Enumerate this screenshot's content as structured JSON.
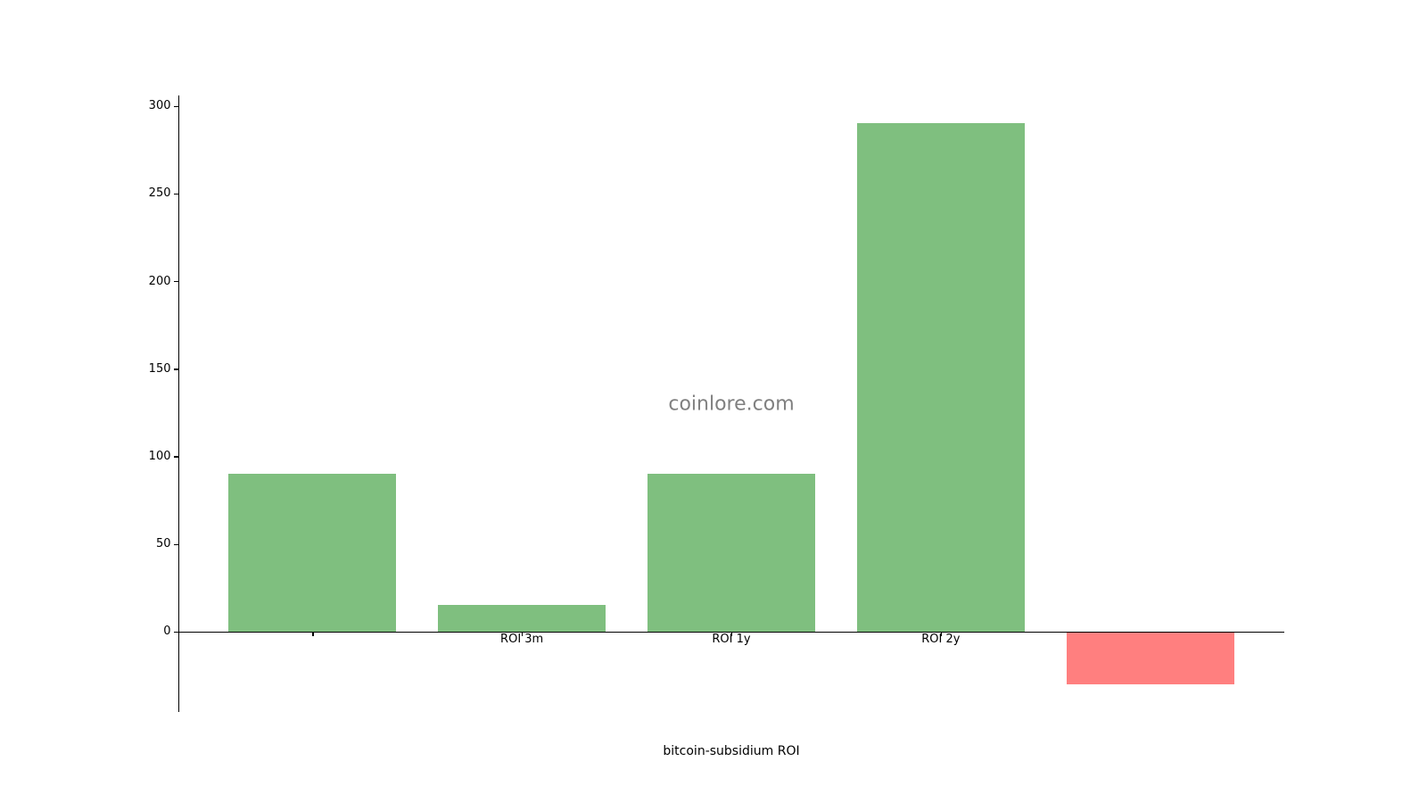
{
  "chart_data": {
    "type": "bar",
    "categories": [
      "",
      "ROI 3m",
      "ROI 1y",
      "ROI 2y",
      ""
    ],
    "values": [
      90,
      15,
      90,
      290,
      -30
    ],
    "bar_colors": [
      "#7fbf7f",
      "#7fbf7f",
      "#7fbf7f",
      "#7fbf7f",
      "#ff7f7f"
    ],
    "positive_color": "#7fbf7f",
    "negative_color": "#ff7f7f",
    "title": "",
    "xlabel": "bitcoin-subsidium ROI",
    "ylabel": "",
    "yticks": [
      0,
      50,
      100,
      150,
      200,
      250,
      300
    ],
    "ylim": [
      -46,
      306
    ],
    "xlim": [
      -0.64,
      4.64
    ],
    "bar_width": 0.8,
    "grid": false,
    "legend": false,
    "watermark": "coinlore.com",
    "axis_color": "#000000",
    "text_color": "#000000",
    "watermark_color": "#808080",
    "background": "#ffffff"
  }
}
